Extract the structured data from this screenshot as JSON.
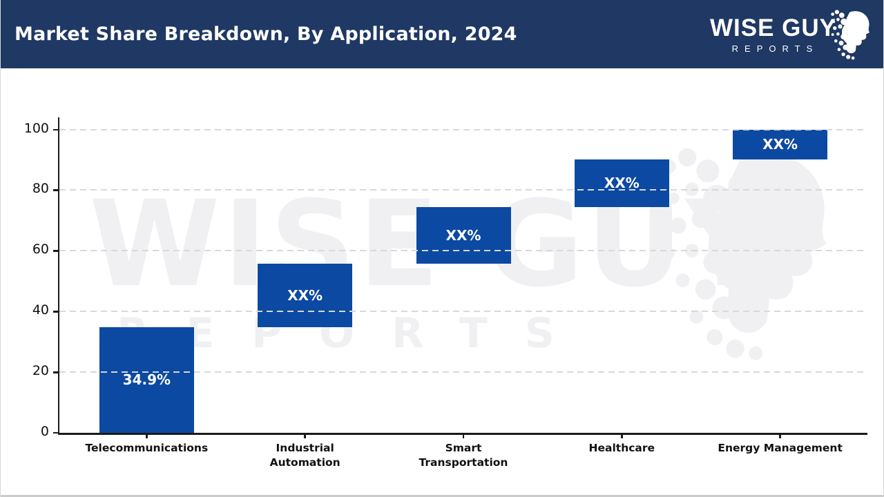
{
  "header": {
    "title": "Market Share Breakdown, By Application, 2024",
    "bg_color": "#1f3864",
    "logo": {
      "wordmark": "WISE GUY",
      "subtext": "REPORTS"
    }
  },
  "watermark": {
    "line1": "WISE GUY",
    "line2": "REPORTS"
  },
  "chart_data": {
    "type": "bar",
    "subtype": "waterfall",
    "title": "Market Share Breakdown, By Application, 2024",
    "unit": "percent",
    "categories": [
      "Telecommunications",
      "Industrial Automation",
      "Smart Transportation",
      "Healthcare",
      "Energy Management"
    ],
    "category_label_lines": [
      [
        "Telecommunications"
      ],
      [
        "Industrial",
        "Automation"
      ],
      [
        "Smart",
        "Transportation"
      ],
      [
        "Healthcare"
      ],
      [
        "Energy Management"
      ]
    ],
    "segments": [
      {
        "category": "Telecommunications",
        "start": 0,
        "end": 34.9,
        "label": "34.9%"
      },
      {
        "category": "Industrial Automation",
        "start": 34.9,
        "end": 55.8,
        "label": "XX%"
      },
      {
        "category": "Smart Transportation",
        "start": 55.8,
        "end": 74.4,
        "label": "XX%"
      },
      {
        "category": "Healthcare",
        "start": 74.4,
        "end": 90.2,
        "label": "XX%"
      },
      {
        "category": "Energy Management",
        "start": 90.2,
        "end": 100.0,
        "label": "XX%"
      }
    ],
    "yticks": [
      0,
      20,
      40,
      60,
      80,
      100
    ],
    "ylim": [
      0,
      104
    ],
    "grid": "dashed-horizontal",
    "legend": "none",
    "bar_color": "#0c49a2",
    "bar_label_color": "#ffffff"
  }
}
